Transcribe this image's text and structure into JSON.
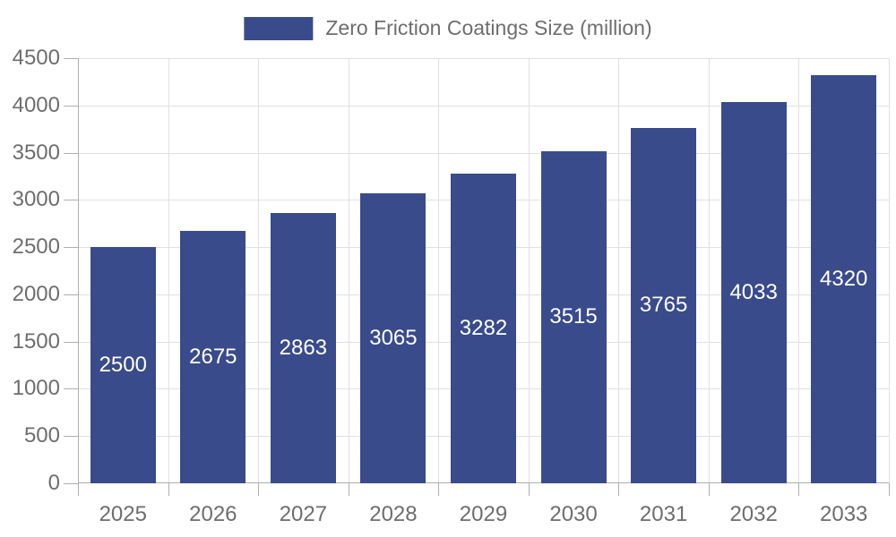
{
  "chart_data": {
    "type": "bar",
    "title": "Zero Friction Coatings Size (million)",
    "series_name": "Zero Friction Coatings Size (million)",
    "categories": [
      "2025",
      "2026",
      "2027",
      "2028",
      "2029",
      "2030",
      "2031",
      "2032",
      "2033"
    ],
    "values": [
      2500,
      2675,
      2863,
      3065,
      3282,
      3515,
      3765,
      4033,
      4320
    ],
    "xlabel": "",
    "ylabel": "",
    "ylim": [
      0,
      4500
    ],
    "yticks": [
      0,
      500,
      1000,
      1500,
      2000,
      2500,
      3000,
      3500,
      4000,
      4500
    ],
    "grid": true,
    "legend_position": "top",
    "value_labels_shown": true,
    "value_label_position": "center",
    "colors": {
      "bar": "#3A4B8C",
      "value_label": "#FFFFFF",
      "axis_text": "#6E6E6E",
      "gridline": "#E0E0E0",
      "axis_line": "#AFAFAF",
      "background": "#FFFFFF"
    }
  }
}
